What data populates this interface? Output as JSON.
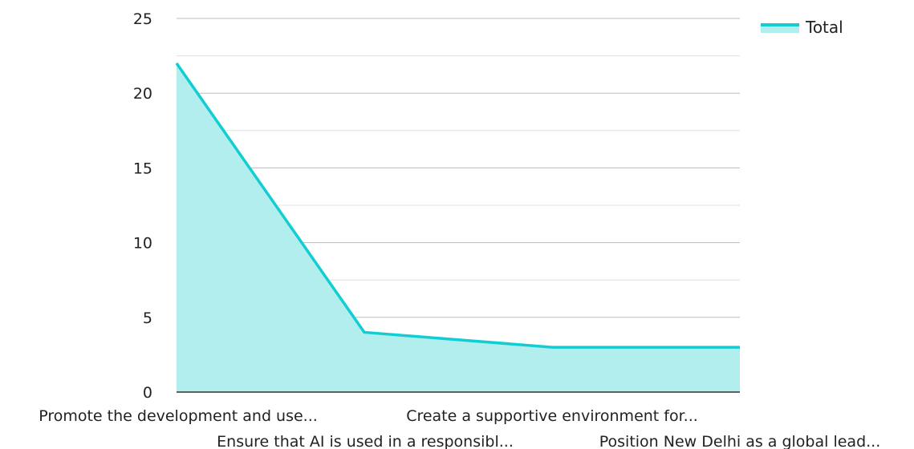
{
  "chart_data": {
    "type": "area",
    "title": "",
    "xlabel": "",
    "ylabel": "",
    "categories": [
      "Promote the development and use...",
      "Ensure that AI is used in a responsibl...",
      "Create a supportive environment for...",
      "Position New Delhi as a global lead..."
    ],
    "series": [
      {
        "name": "Total",
        "values": [
          22,
          4,
          3,
          3
        ]
      }
    ],
    "ylim": [
      0,
      25
    ],
    "yticks": [
      0,
      5,
      10,
      15,
      20,
      25
    ],
    "grid": true,
    "legend_position": "top-right",
    "colors": {
      "line": "#12cdd1",
      "fill": "#b2eeee",
      "grid": "#cccccc",
      "axis": "#333333"
    }
  }
}
